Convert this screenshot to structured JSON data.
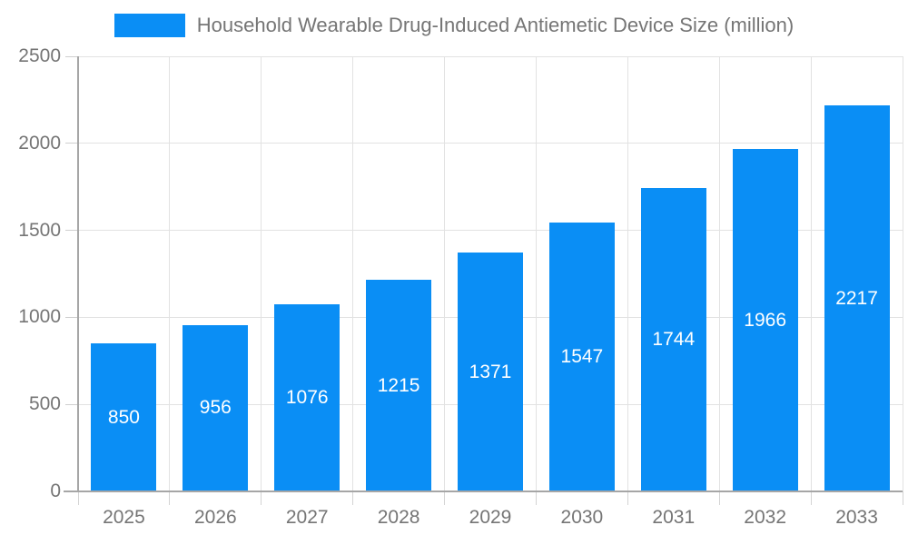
{
  "chart_data": {
    "type": "bar",
    "title": "Household Wearable Drug-Induced Antiemetic Device Size (million)",
    "categories": [
      "2025",
      "2026",
      "2027",
      "2028",
      "2029",
      "2030",
      "2031",
      "2032",
      "2033"
    ],
    "values": [
      850,
      956,
      1076,
      1215,
      1371,
      1547,
      1744,
      1966,
      2217
    ],
    "xlabel": "",
    "ylabel": "",
    "ylim": [
      0,
      2500
    ],
    "yticks": [
      0,
      500,
      1000,
      1500,
      2000,
      2500
    ],
    "grid": true,
    "legend_position": "top",
    "bar_color": "#0a8ef5",
    "value_label_color": "#ffffff",
    "axis_text_color": "#757575",
    "grid_color": "#e2e2e2",
    "axis_line_color": "#a6a6a6"
  }
}
